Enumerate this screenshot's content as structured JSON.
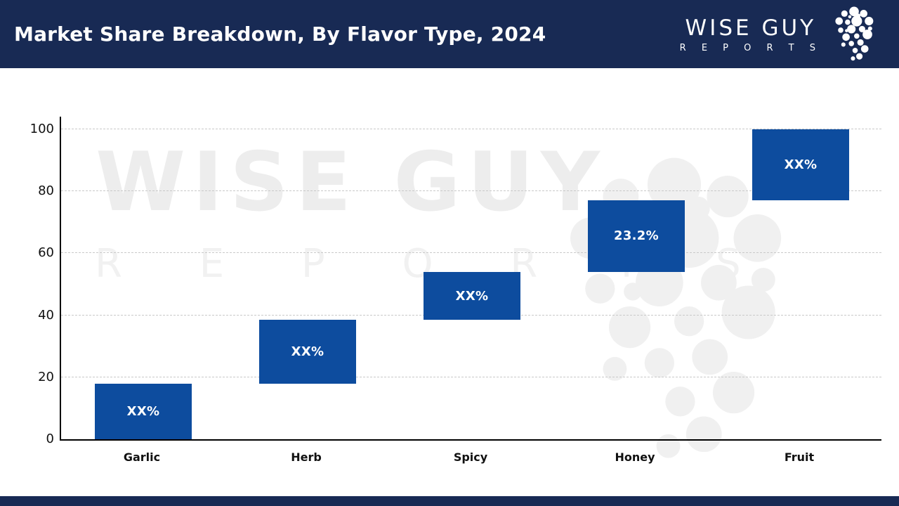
{
  "header": {
    "title": "Market Share Breakdown, By Flavor Type, 2024",
    "bg_color": "#182A54",
    "logo": {
      "line1": "WISE GUY",
      "line2": "R E P O R T S"
    }
  },
  "watermark": {
    "line1": "WISE GUY",
    "line2": "R E P O R T S"
  },
  "chart_data": {
    "type": "bar",
    "subtype": "waterfall",
    "title": "Market Share Breakdown, By Flavor Type, 2024",
    "categories": [
      "Garlic",
      "Herb",
      "Spicy",
      "Honey",
      "Fruit"
    ],
    "bars": [
      {
        "category": "Garlic",
        "start": 0,
        "end": 18,
        "label": "XX%"
      },
      {
        "category": "Herb",
        "start": 18,
        "end": 38.5,
        "label": "XX%"
      },
      {
        "category": "Spicy",
        "start": 38.5,
        "end": 54,
        "label": "XX%"
      },
      {
        "category": "Honey",
        "start": 54,
        "end": 77.2,
        "label": "23.2%"
      },
      {
        "category": "Fruit",
        "start": 77.2,
        "end": 100,
        "label": "XX%"
      }
    ],
    "bar_color": "#0D4C9E",
    "label_color": "#ffffff",
    "yticks": [
      0,
      20,
      40,
      60,
      80,
      100
    ],
    "ylim": [
      0,
      100
    ],
    "xlabel": "",
    "ylabel": "",
    "grid": "horizontal-dashed",
    "legend": "none"
  }
}
